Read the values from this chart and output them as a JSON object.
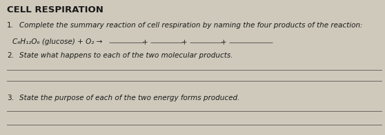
{
  "title": "CELL RESPIRATION",
  "q1_label": "1.",
  "q1_text": "Complete the summary reaction of cell respiration by naming the four products of the reaction:",
  "q1_equation_prefix": "C₆H₁₂O₆ (glucose) + O₂ →",
  "q2_label": "2.",
  "q2_text": "State what happens to each of the two molecular products.",
  "q3_label": "3.",
  "q3_text": "State the purpose of each of the two energy forms produced.",
  "bg_color": "#cec9bb",
  "text_color": "#1a1a1a",
  "line_color": "#6a6560",
  "title_fontsize": 9.5,
  "body_fontsize": 7.5,
  "eq_fontsize": 7.5,
  "figsize": [
    5.58,
    1.97
  ],
  "dpi": 100
}
